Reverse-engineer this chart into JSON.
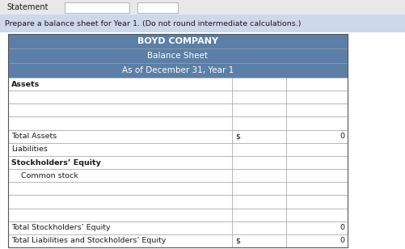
{
  "title1": "BOYD COMPANY",
  "title2": "Balance Sheet",
  "title3": "As of December 31, Year 1",
  "header_bg": "#5b7fa6",
  "header_text_color": "#ffffff",
  "cell_bg_white": "#ffffff",
  "border_color": "#999999",
  "dark_border": "#555555",
  "text_color": "#1a1a1a",
  "instruction_text": "Prepare a balance sheet for Year 1. (Do not round intermediate calculations.)",
  "instruction_bg": "#ccd9ea",
  "tab_bg": "#e8e8e8",
  "top_area_bg": "#d6e4f0",
  "rows": [
    {
      "label": "Assets",
      "indent": 0,
      "col1": "",
      "col2": "",
      "bold": true
    },
    {
      "label": "",
      "indent": 0,
      "col1": "",
      "col2": "",
      "bold": false
    },
    {
      "label": "",
      "indent": 0,
      "col1": "",
      "col2": "",
      "bold": false
    },
    {
      "label": "",
      "indent": 0,
      "col1": "",
      "col2": "",
      "bold": false
    },
    {
      "label": "Total Assets",
      "indent": 0,
      "col1": "$",
      "col2": "0",
      "bold": false
    },
    {
      "label": "Liabilities",
      "indent": 0,
      "col1": "",
      "col2": "",
      "bold": false
    },
    {
      "label": "Stockholders’ Equity",
      "indent": 0,
      "col1": "",
      "col2": "",
      "bold": true
    },
    {
      "label": "Common stock",
      "indent": 1,
      "col1": "",
      "col2": "",
      "bold": false
    },
    {
      "label": "",
      "indent": 0,
      "col1": "",
      "col2": "",
      "bold": false
    },
    {
      "label": "",
      "indent": 0,
      "col1": "",
      "col2": "",
      "bold": false
    },
    {
      "label": "",
      "indent": 0,
      "col1": "",
      "col2": "",
      "bold": false
    },
    {
      "label": "Total Stockholders’ Equity",
      "indent": 0,
      "col1": "",
      "col2": "0",
      "bold": false
    },
    {
      "label": "Total Liabilities and Stockholders’ Equity",
      "indent": 0,
      "col1": "$",
      "col2": "0",
      "bold": false
    }
  ],
  "fig_width": 5.01,
  "fig_height": 3.08,
  "dpi": 100
}
